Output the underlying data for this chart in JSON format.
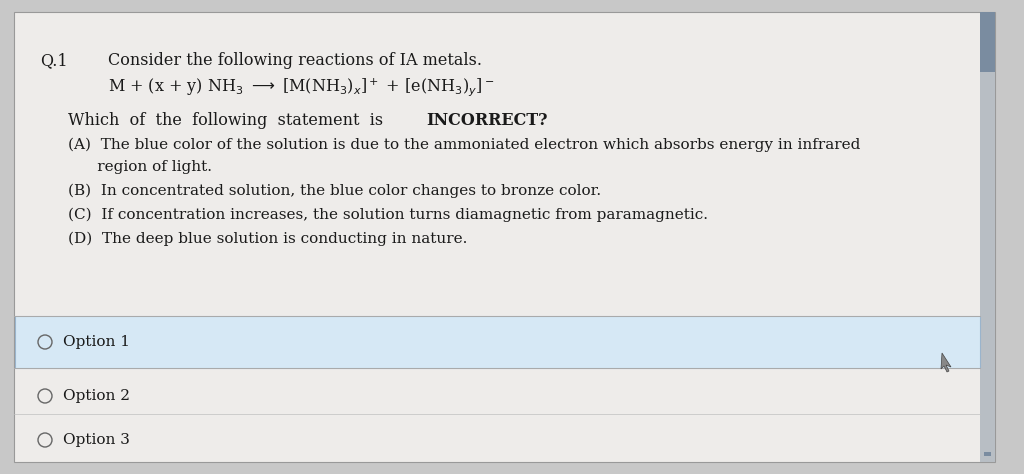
{
  "bg_color": "#c8c8c8",
  "card_color": "#eeecea",
  "card_border_color": "#999999",
  "option1_bg": "#d6e8f5",
  "option1_border": "#9ab4cc",
  "text_color": "#1a1a1a",
  "radio_color": "#666666",
  "scrollbar_color": "#7a8ca0",
  "scrollbar_bg": "#b8bec4",
  "question_label": "Q.1",
  "question_title": "Consider the following reactions of IA metals.",
  "statement_intro": "Which  of  the  following  statement  is ",
  "statement_bold": "INCORRECT?",
  "opt_a_line1": "(A)  The blue color of the solution is due to the ammoniated electron which absorbs energy in infrared",
  "opt_a_line2": "      region of light.",
  "opt_b": "(B)  In concentrated solution, the blue color changes to bronze color.",
  "opt_c": "(C)  If concentration increases, the solution turns diamagnetic from paramagnetic.",
  "opt_d": "(D)  The deep blue solution is conducting in nature.",
  "radio_options": [
    "Option 1",
    "Option 2",
    "Option 3"
  ],
  "figsize": [
    10.24,
    4.74
  ],
  "dpi": 100
}
